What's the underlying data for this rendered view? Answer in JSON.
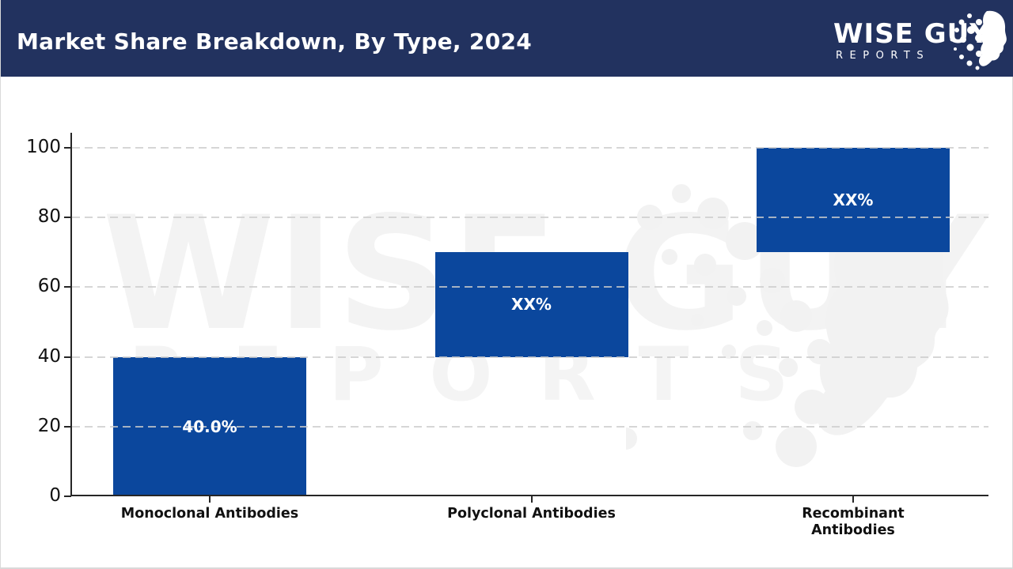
{
  "header": {
    "title": "Market Share Breakdown, By Type, 2024",
    "bg_color": "#22325F",
    "logo": {
      "line1": "WISE GUY",
      "line2": "REPORTS"
    }
  },
  "watermark": {
    "line1": "WISE GUY",
    "line2": "REPORTS"
  },
  "chart_data": {
    "type": "bar",
    "variant": "floating-segment-breakdown",
    "title": "Market Share Breakdown, By Type, 2024",
    "categories": [
      "Monoclonal Antibodies",
      "Polyclonal Antibodies",
      "Recombinant Antibodies"
    ],
    "segments": [
      {
        "category": "Monoclonal Antibodies",
        "start": 0,
        "end": 40,
        "label": "40.0%"
      },
      {
        "category": "Polyclonal Antibodies",
        "start": 40,
        "end": 70,
        "label": "XX%"
      },
      {
        "category": "Recombinant Antibodies",
        "start": 70,
        "end": 100,
        "label": "XX%"
      }
    ],
    "values_pct": [
      40,
      30,
      30
    ],
    "bar_color": "#0B479D",
    "bar_label_color": "#FFFFFF",
    "xlabel": "",
    "ylabel": "",
    "ylim": [
      0,
      100
    ],
    "yticks": [
      0,
      20,
      40,
      60,
      80,
      100
    ],
    "grid": {
      "horizontal": true,
      "style": "dashed",
      "over_bars": true
    },
    "legend": null
  }
}
